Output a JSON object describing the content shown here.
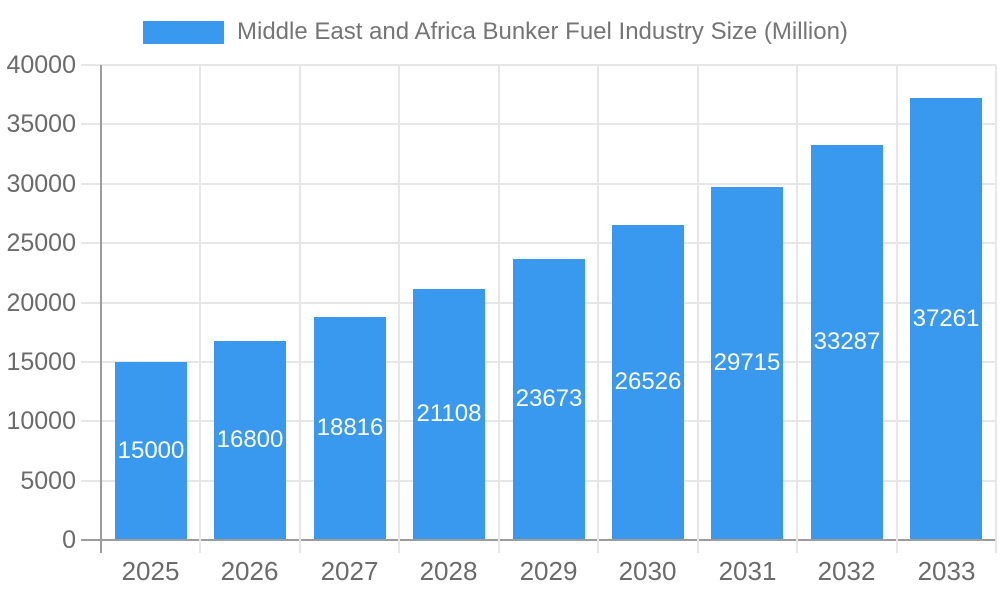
{
  "legend": {
    "label": "Middle East and Africa Bunker Fuel Industry Size (Million)"
  },
  "chart_data": {
    "type": "bar",
    "title": "Middle East and Africa Bunker Fuel Industry Size (Million)",
    "categories": [
      "2025",
      "2026",
      "2027",
      "2028",
      "2029",
      "2030",
      "2031",
      "2032",
      "2033"
    ],
    "values": [
      15000,
      16800,
      18816,
      21108,
      23673,
      26526,
      29715,
      33287,
      37261
    ],
    "value_labels": [
      "15000",
      "16800",
      "18816",
      "21108",
      "23673",
      "26526",
      "29715",
      "33287",
      "37261"
    ],
    "xlabel": "",
    "ylabel": "",
    "ylim": [
      0,
      40000
    ],
    "yticks": [
      0,
      5000,
      10000,
      15000,
      20000,
      25000,
      30000,
      35000,
      40000
    ],
    "ytick_labels": [
      "0",
      "5000",
      "10000",
      "15000",
      "20000",
      "25000",
      "30000",
      "35000",
      "40000"
    ],
    "grid": true,
    "legend_position": "top",
    "bar_color": "#3999ee",
    "value_label_color": "#ffffff",
    "axis_color": "#9c9c9c",
    "gridline_color": "#e7e7e7",
    "tick_label_color": "#6b6b6b",
    "title_color": "#757575"
  }
}
